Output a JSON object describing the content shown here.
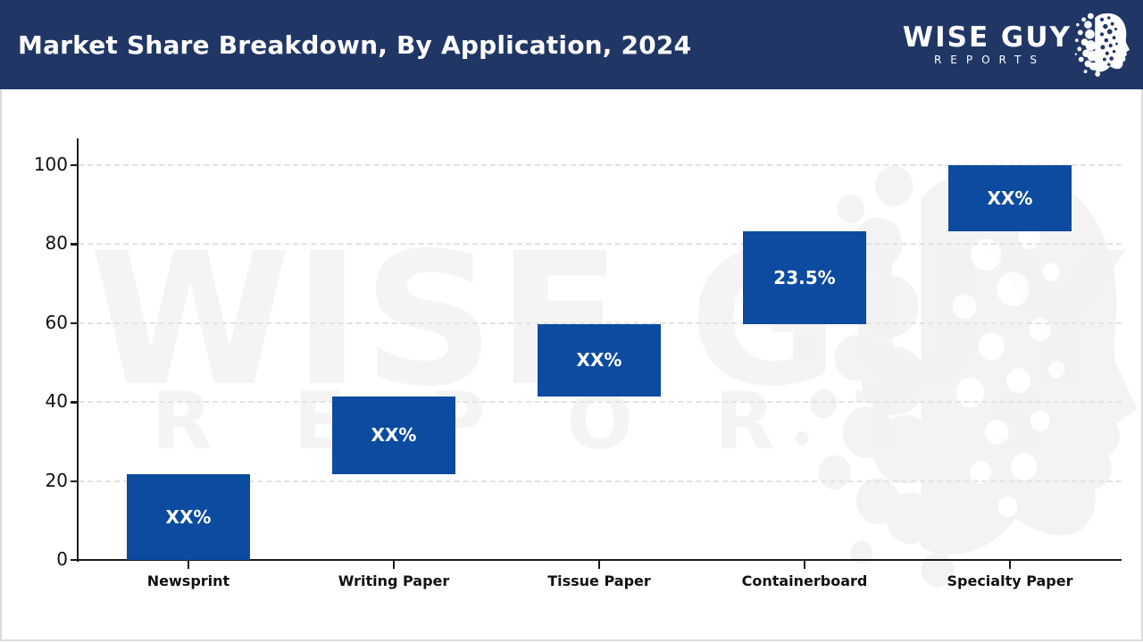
{
  "header": {
    "title": "Market Share Breakdown, By Application, 2024",
    "logo": {
      "line1": "WISE GUY",
      "line2": "REPORTS"
    }
  },
  "watermark": {
    "line1": "WISE GUY",
    "line2": "R E P O R T S"
  },
  "colors": {
    "header_bg": "#203766",
    "bar": "#0c4ba0",
    "bar_label": "#ffffff",
    "grid": "#e3e3e3",
    "axis": "#1a1a1a",
    "watermark": "#f4f4f4"
  },
  "chart_data": {
    "type": "bar",
    "subtype": "waterfall",
    "title": "Market Share Breakdown, By Application, 2024",
    "categories": [
      "Newsprint",
      "Writing Paper",
      "Tissue Paper",
      "Containerboard",
      "Specialty Paper"
    ],
    "segments": [
      {
        "category": "Newsprint",
        "start": 0,
        "end": 21.7,
        "label": "XX%"
      },
      {
        "category": "Writing Paper",
        "start": 21.7,
        "end": 41.5,
        "label": "XX%"
      },
      {
        "category": "Tissue Paper",
        "start": 41.5,
        "end": 59.8,
        "label": "XX%"
      },
      {
        "category": "Containerboard",
        "start": 59.8,
        "end": 83.3,
        "label": "23.5%"
      },
      {
        "category": "Specialty Paper",
        "start": 83.3,
        "end": 100,
        "label": "XX%"
      }
    ],
    "y_ticks": [
      0,
      20,
      40,
      60,
      80,
      100
    ],
    "ylim": [
      0,
      107
    ],
    "xlabel": "",
    "ylabel": "",
    "grid": "dashed-horizontal",
    "legend": "none"
  }
}
